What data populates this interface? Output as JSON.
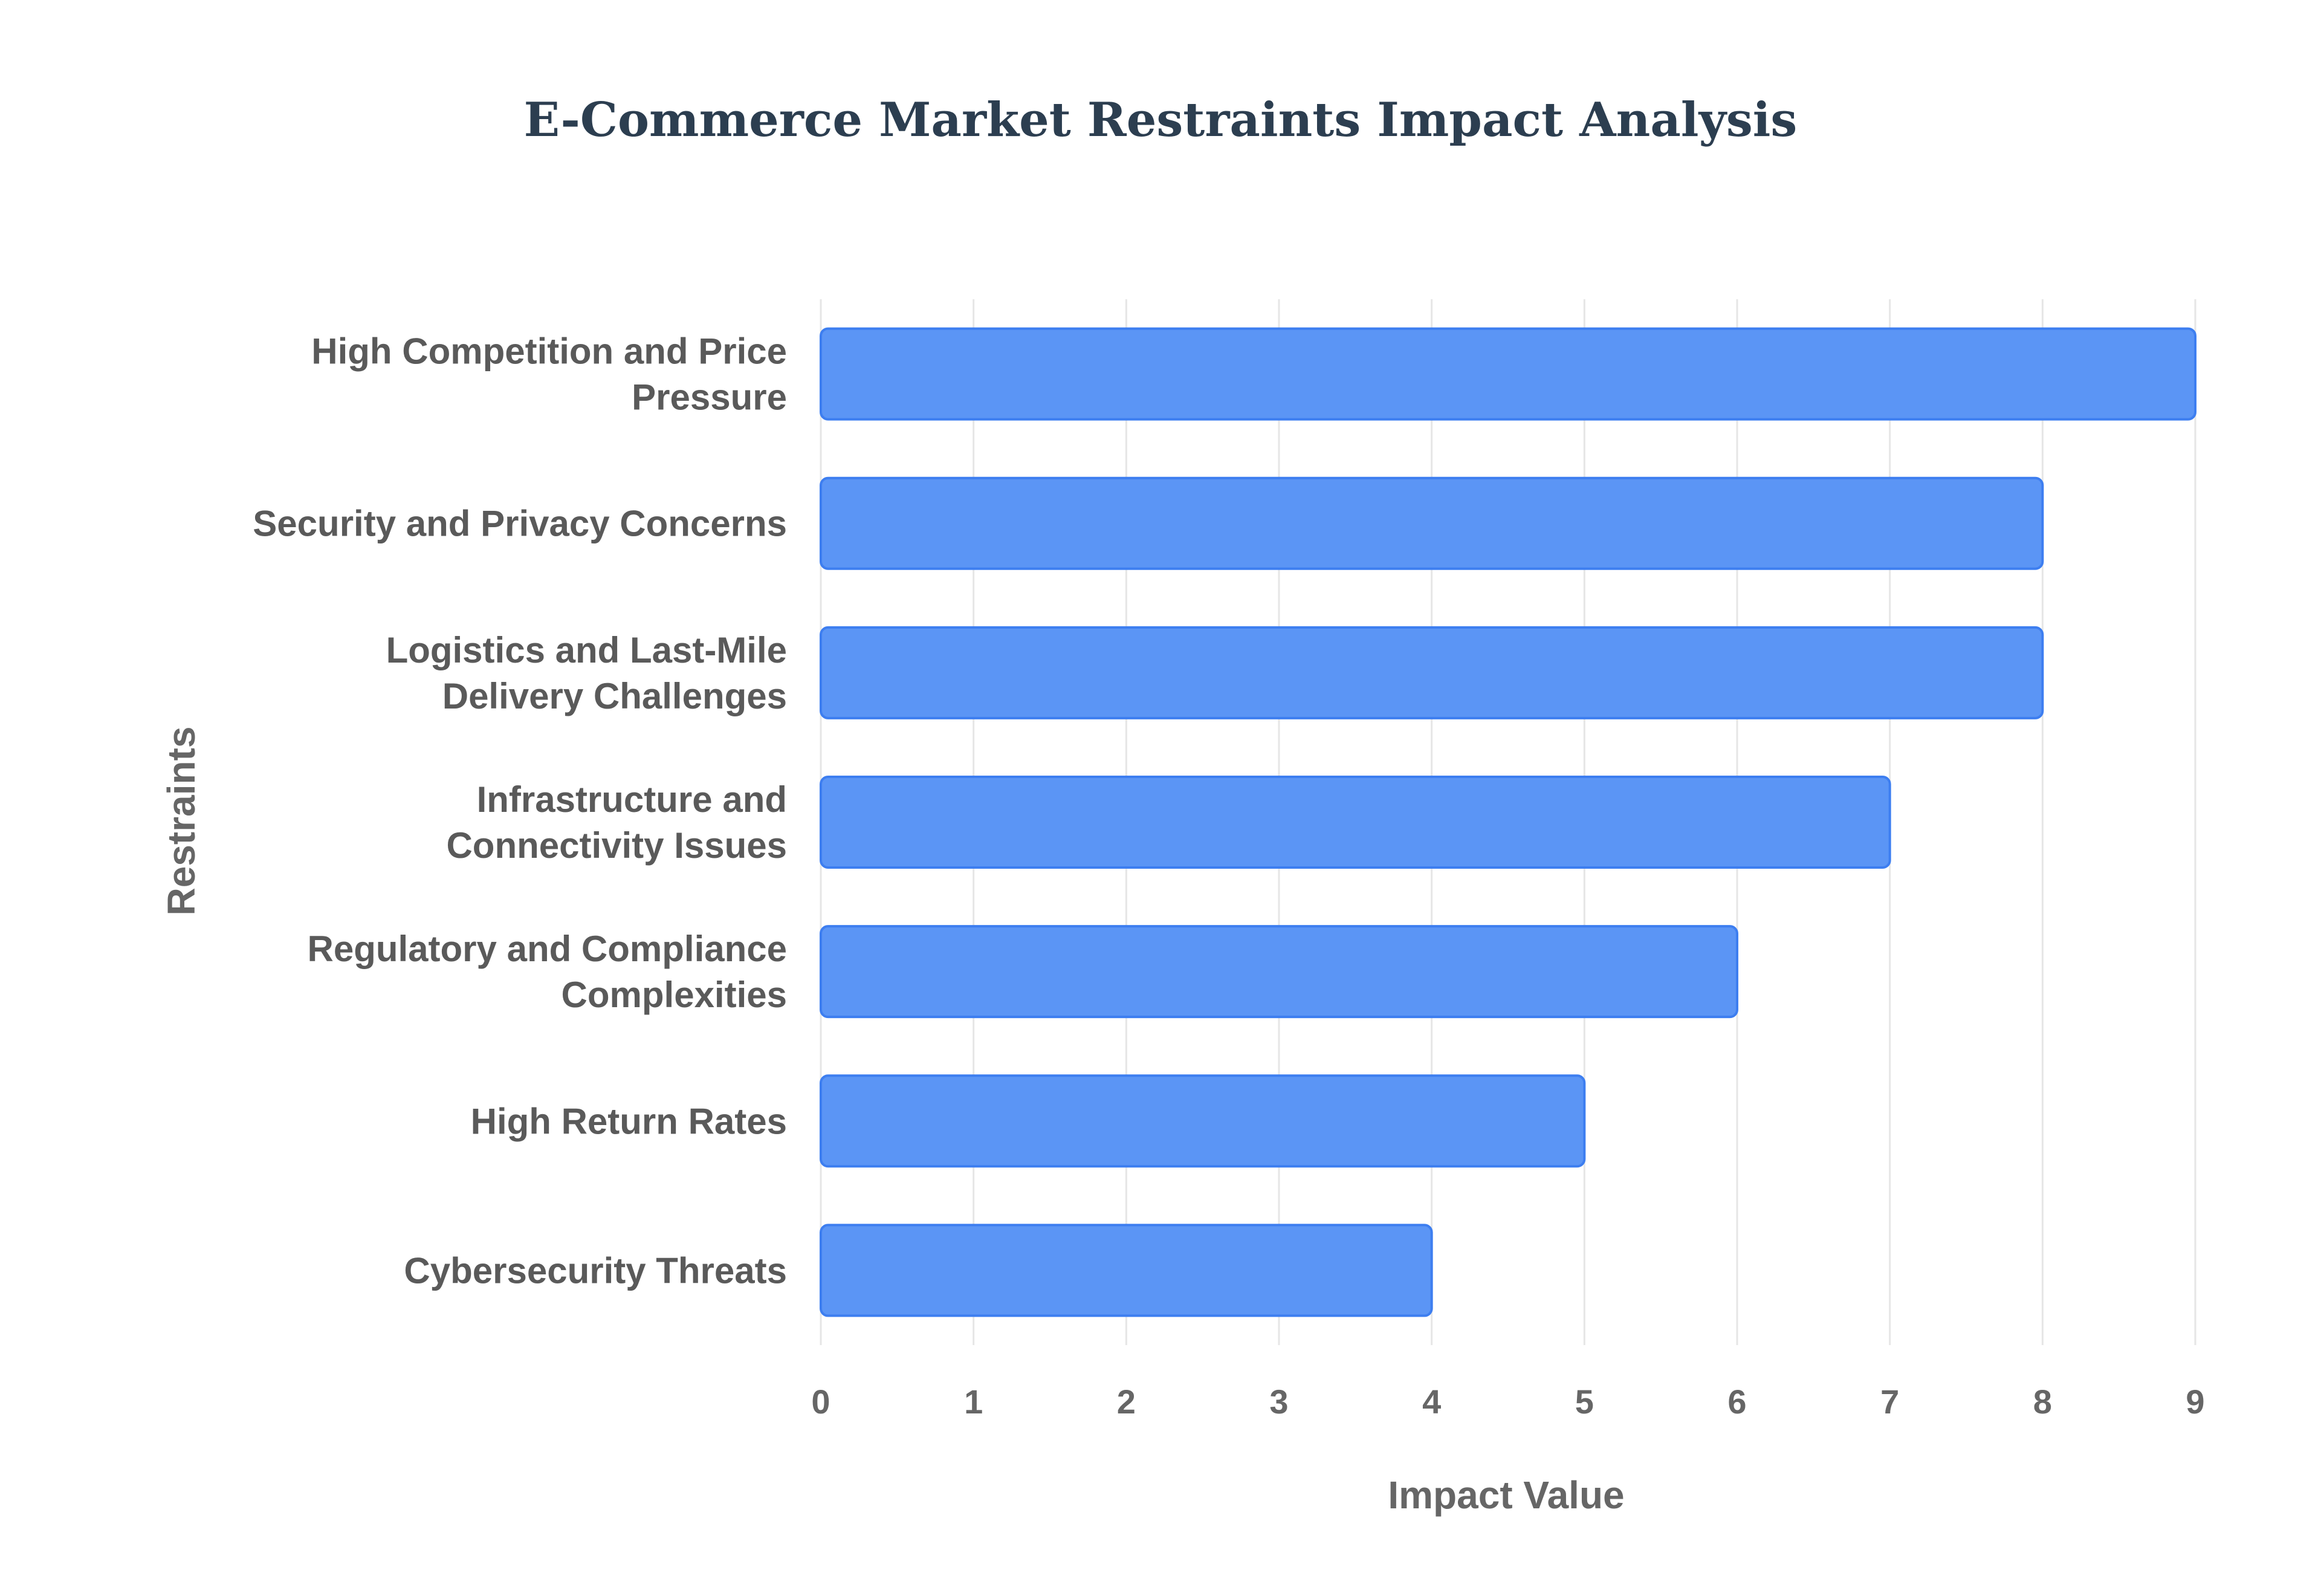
{
  "chart_data": {
    "type": "bar",
    "orientation": "horizontal",
    "title": "E-Commerce Market Restraints Impact Analysis",
    "xlabel": "Impact Value",
    "ylabel": "Restraints",
    "categories": [
      [
        "High Competition and Price",
        "Pressure"
      ],
      [
        "Security and Privacy Concerns"
      ],
      [
        "Logistics and Last-Mile",
        "Delivery Challenges"
      ],
      [
        "Infrastructure and",
        "Connectivity Issues"
      ],
      [
        "Regulatory and Compliance",
        "Complexities"
      ],
      [
        "High Return Rates"
      ],
      [
        "Cybersecurity Threats"
      ]
    ],
    "values": [
      9,
      8,
      8,
      7,
      6,
      5,
      4
    ],
    "xlim": [
      0,
      9
    ],
    "xticks": [
      "0",
      "1",
      "2",
      "3",
      "4",
      "5",
      "6",
      "7",
      "8",
      "9"
    ],
    "grid": true,
    "legend": "none",
    "colors": {
      "bar_fill": "#5b95f5",
      "bar_stroke": "#3d7ef0",
      "title": "#2c3e50"
    }
  }
}
